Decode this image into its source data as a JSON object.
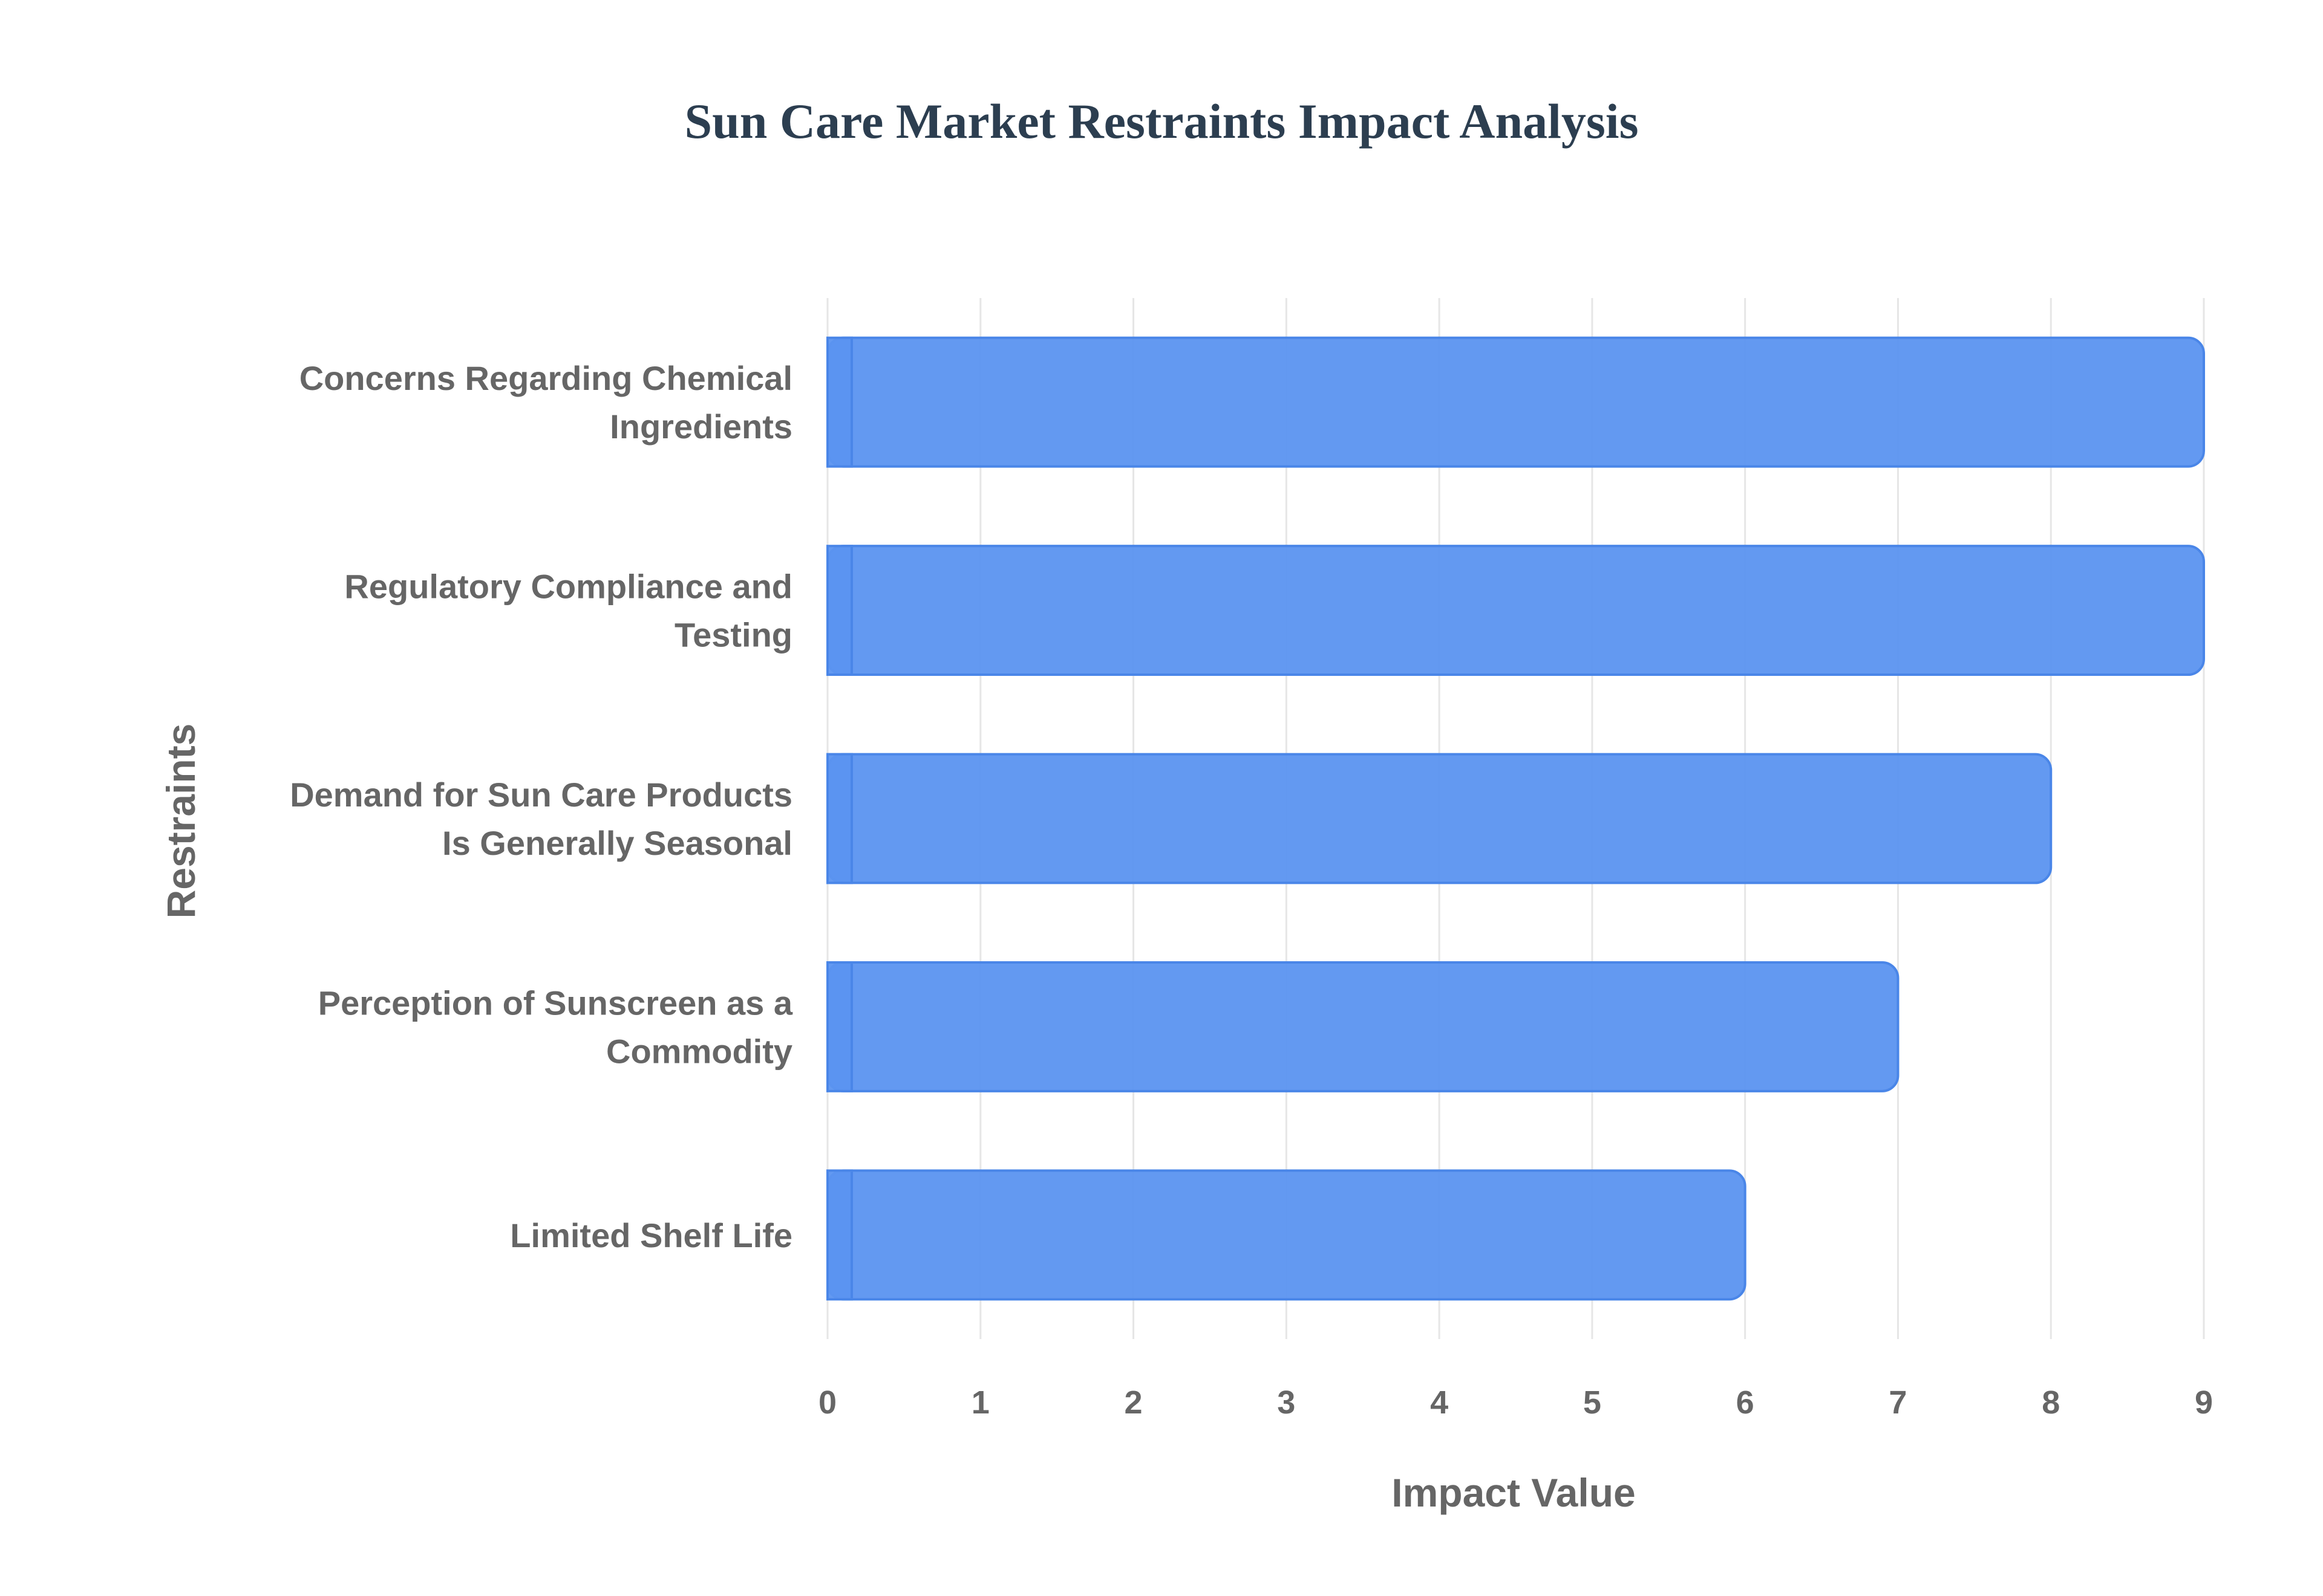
{
  "chart_data": {
    "type": "bar",
    "orientation": "horizontal",
    "title": "Sun Care Market Restraints Impact Analysis",
    "xlabel": "Impact Value",
    "ylabel": "Restraints",
    "categories": [
      [
        "Concerns Regarding Chemical",
        "Ingredients"
      ],
      [
        "Regulatory Compliance and",
        "Testing"
      ],
      [
        "Demand for Sun Care Products",
        "Is Generally Seasonal"
      ],
      [
        "Perception of Sunscreen as a",
        "Commodity"
      ],
      [
        "Limited Shelf Life"
      ]
    ],
    "values": [
      9,
      9,
      8,
      7,
      6
    ],
    "xlim": [
      0,
      9
    ],
    "xticks": [
      "0",
      "1",
      "2",
      "3",
      "4",
      "5",
      "6",
      "7",
      "8",
      "9"
    ],
    "grid": true,
    "legend": "none",
    "bar_color": "#5b93f0",
    "bar_border_color": "#4a86e8"
  }
}
